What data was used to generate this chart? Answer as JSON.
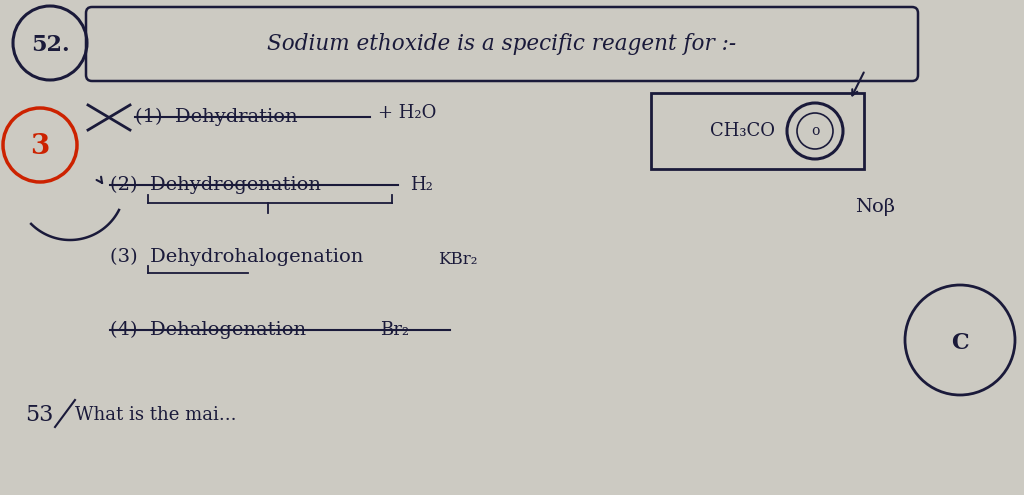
{
  "bg_color": "#cccac2",
  "title_text": "Sodium ethoxide is a specific reagent for :-",
  "question_num": "52.",
  "circle_label": "3",
  "font_color": "#1a1a3a",
  "circle_color_ans": "#cc2200",
  "opt1_main": "(1)  Dehydration",
  "opt1_extra": "H₂O",
  "opt2_main": "(2)  Dehydrogenation",
  "opt2_extra": "H₂",
  "opt3_main": "(3)  Dehydrohalogenation",
  "opt3_extra": "KBr₂",
  "opt4_main": "(4)  Dehalogenation",
  "opt4_extra": "Br₂",
  "next_q": "53",
  "next_q_text": "What is the mai...",
  "box_text": "CH₃CO",
  "note_text": "Noβ"
}
